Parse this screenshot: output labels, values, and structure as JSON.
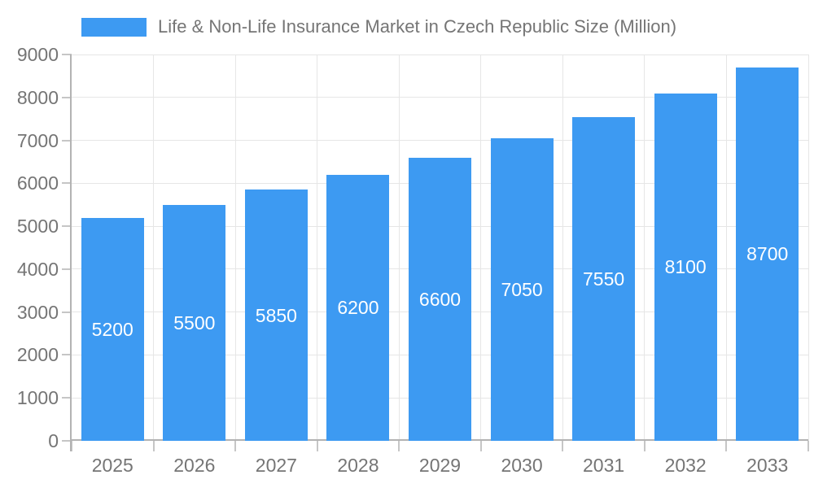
{
  "chart_data": {
    "type": "bar",
    "title": "Life & Non-Life Insurance Market in Czech Republic Size (Million)",
    "categories": [
      "2025",
      "2026",
      "2027",
      "2028",
      "2029",
      "2030",
      "2031",
      "2032",
      "2033"
    ],
    "values": [
      5200,
      5500,
      5850,
      6200,
      6600,
      7050,
      7550,
      8100,
      8700
    ],
    "bar_labels": [
      "5200",
      "5500",
      "5850",
      "6200",
      "6600",
      "7050",
      "7550",
      "8100",
      "8700"
    ],
    "xlabel": "",
    "ylabel": "",
    "ylim": [
      0,
      9000
    ],
    "ytick_step": 1000,
    "ytick_labels": [
      "0",
      "1000",
      "2000",
      "3000",
      "4000",
      "5000",
      "6000",
      "7000",
      "8000",
      "9000"
    ],
    "grid": true,
    "legend_position": "top",
    "bar_labels_inside": true,
    "colors": {
      "bar": "#3D9AF2",
      "bar_label": "#FFFFFF",
      "axis_text": "#757575",
      "legend_text": "#757575",
      "axis_line": "#B3B3B3",
      "tick": "#C6C6C6",
      "gridline": "#E6E6E6",
      "background": "#FFFFFF"
    }
  }
}
